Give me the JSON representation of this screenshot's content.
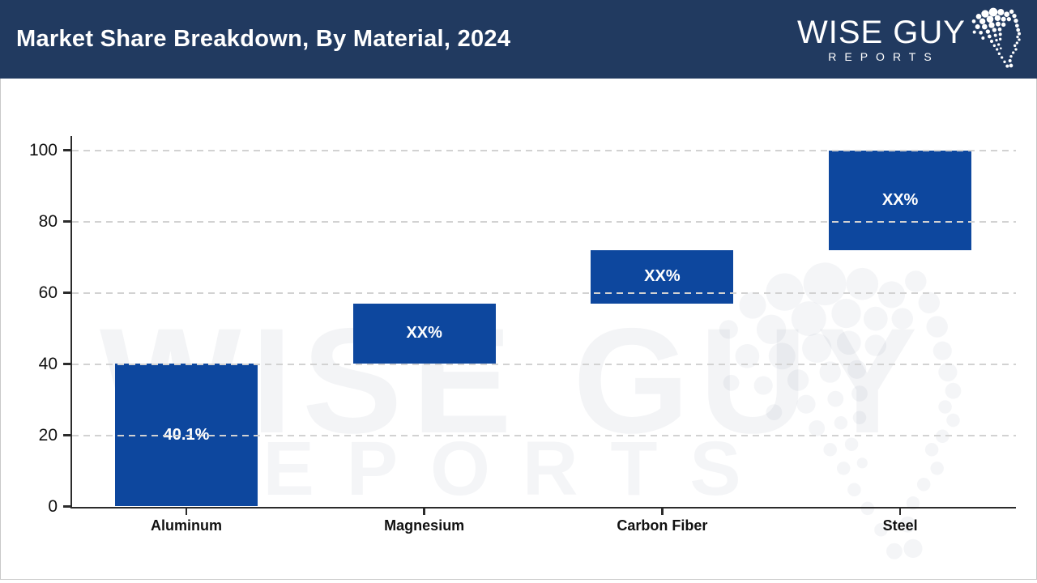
{
  "header": {
    "title": "Market Share Breakdown, By Material, 2024",
    "background_color": "#213a60",
    "logo": {
      "line1": "WISE GUY",
      "line2": "REPORTS"
    }
  },
  "watermark": {
    "line1": "WISE GUY",
    "line2": "REPORTS"
  },
  "chart_data": {
    "type": "bar",
    "variant": "waterfall",
    "title": "Market Share Breakdown, By Material, 2024",
    "categories": [
      "Aluminum",
      "Magnesium",
      "Carbon Fiber",
      "Steel"
    ],
    "bars": [
      {
        "category": "Aluminum",
        "start": 0,
        "end": 40.1,
        "label": "40.1%"
      },
      {
        "category": "Magnesium",
        "start": 40.1,
        "end": 57,
        "label": "XX%"
      },
      {
        "category": "Carbon Fiber",
        "start": 57,
        "end": 72,
        "label": "XX%"
      },
      {
        "category": "Steel",
        "start": 72,
        "end": 100,
        "label": "XX%"
      }
    ],
    "xlabel": "",
    "ylabel": "",
    "ylim": [
      0,
      100
    ],
    "yticks": [
      0,
      20,
      40,
      60,
      80,
      100
    ],
    "grid": "horizontal-dashed",
    "legend": "none",
    "bar_color": "#0d479e",
    "bar_label_color": "#ffffff",
    "axis_color": "#2b2b2b",
    "gridline_color": "#d4d4d4"
  }
}
